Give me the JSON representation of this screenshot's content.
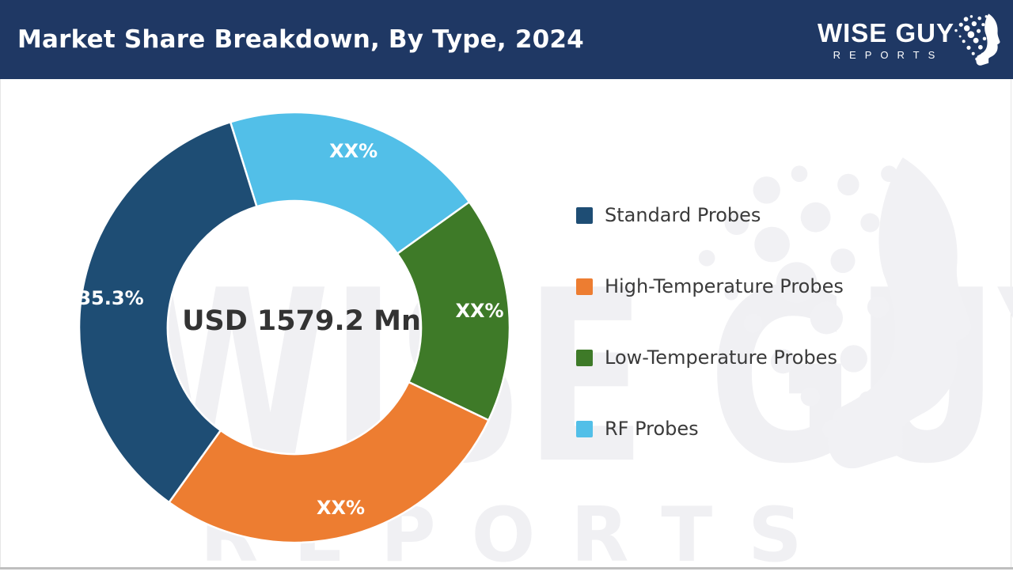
{
  "header": {
    "title": "Market Share Breakdown, By Type, 2024",
    "logo": {
      "name": "WISE GUY",
      "tagline": "REPORTS"
    }
  },
  "watermark": {
    "word1": "WISE GUY",
    "word2": "REPORTS"
  },
  "chart_data": {
    "type": "pie",
    "subtype": "donut",
    "title": "Market Share Breakdown, By Type, 2024",
    "center_label": "USD 1579.2 Mn",
    "legend_position": "right",
    "start_angle_deg": -17.3,
    "segments": [
      {
        "name": "RF Probes",
        "approx_percent": 19.9,
        "display_label": "XX%",
        "color": "#52BFE8"
      },
      {
        "name": "Low-Temperature Probes",
        "approx_percent": 17.0,
        "display_label": "XX%",
        "color": "#3E7A28"
      },
      {
        "name": "High-Temperature Probes",
        "approx_percent": 27.8,
        "display_label": "XX%",
        "color": "#ED7D31"
      },
      {
        "name": "Standard Probes",
        "approx_percent": 35.3,
        "display_label": "35.3%",
        "color": "#1E4D74"
      }
    ],
    "legend": [
      {
        "label": "Standard Probes",
        "color": "#1E4D74"
      },
      {
        "label": "High-Temperature Probes",
        "color": "#ED7D31"
      },
      {
        "label": "Low-Temperature Probes",
        "color": "#3E7A28"
      },
      {
        "label": "RF Probes",
        "color": "#52BFE8"
      }
    ]
  },
  "colors": {
    "header_bg": "#1F3864",
    "dark_blue": "#1E4D74",
    "orange": "#ED7D31",
    "green": "#3E7A28",
    "light_blue": "#52BFE8",
    "watermark": "#F0F0F3",
    "bottom_rule": "#BFBFBF"
  }
}
